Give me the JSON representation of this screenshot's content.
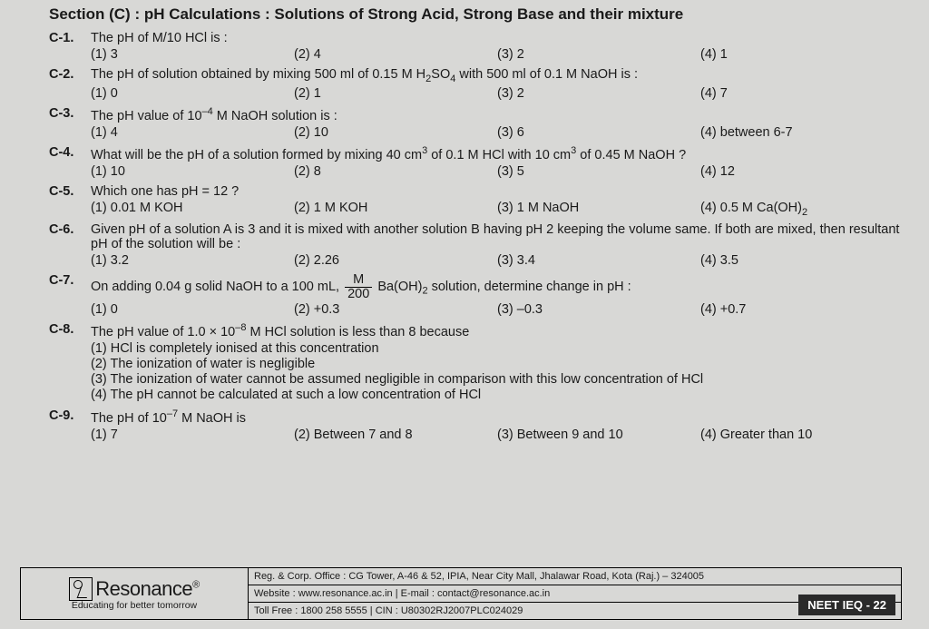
{
  "section_title": "Section (C) : pH Calculations : Solutions of Strong Acid, Strong Base and their mixture",
  "questions": [
    {
      "num": "C-1.",
      "text": "The pH of M/10 HCl is :",
      "options": [
        "(1) 3",
        "(2) 4",
        "(3) 2",
        "(4) 1"
      ],
      "layout": "row"
    },
    {
      "num": "C-2.",
      "text_html": "The pH of solution obtained by mixing 500 ml of 0.15 M H<span class='sub'>2</span>SO<span class='sub'>4</span> with 500 ml of 0.1 M NaOH is :",
      "options": [
        "(1) 0",
        "(2) 1",
        "(3) 2",
        "(4) 7"
      ],
      "layout": "row"
    },
    {
      "num": "C-3.",
      "text_html": "The pH value of 10<span class='sup'>–4</span> M NaOH solution is :",
      "options": [
        "(1) 4",
        "(2) 10",
        "(3) 6",
        "(4) between 6-7"
      ],
      "layout": "row"
    },
    {
      "num": "C-4.",
      "text_html": "What will be the pH of a solution formed by mixing 40 cm<span class='sup'>3</span> of 0.1 M HCl with 10 cm<span class='sup'>3</span> of 0.45 M NaOH ?",
      "options": [
        "(1) 10",
        "(2) 8",
        "(3) 5",
        "(4) 12"
      ],
      "layout": "row"
    },
    {
      "num": "C-5.",
      "text": "Which one has pH = 12 ?",
      "options_html": [
        "(1) 0.01 M KOH",
        "(2) 1 M KOH",
        "(3) 1 M NaOH",
        "(4) 0.5 M Ca(OH)<span class='sub'>2</span>"
      ],
      "layout": "row"
    },
    {
      "num": "C-6.",
      "text": "Given pH of a solution A is 3 and it is mixed with another solution B having pH 2 keeping the volume same. If both are mixed, then resultant pH of the solution will be :",
      "options": [
        "(1) 3.2",
        "(2) 2.26",
        "(3) 3.4",
        "(4) 3.5"
      ],
      "layout": "row"
    },
    {
      "num": "C-7.",
      "text_html": "On adding 0.04 g solid NaOH to a 100 mL, <span class='frac'><span class='n'>M</span><span class='d'>200</span></span> Ba(OH)<span class='sub'>2</span> solution, determine change in pH :",
      "options": [
        "(1) 0",
        "(2) +0.3",
        "(3) –0.3",
        "(4) +0.7"
      ],
      "layout": "row"
    },
    {
      "num": "C-8.",
      "text_html": "The pH value of 1.0 × 10<span class='sup'>–8</span> M HCl solution is less than 8 because",
      "options": [
        "(1) HCl is completely ionised at this concentration",
        "(2) The ionization of water is negligible",
        "(3) The ionization of water cannot be assumed negligible in comparison with this low concentration of HCl",
        "(4) The pH cannot be calculated at such a low concentration of HCl"
      ],
      "layout": "stack"
    },
    {
      "num": "C-9.",
      "text_html": "The pH of 10<span class='sup'>–7</span> M NaOH is",
      "options": [
        "(1) 7",
        "(2) Between 7 and 8",
        "(3) Between 9 and 10",
        "(4) Greater than 10"
      ],
      "layout": "row"
    }
  ],
  "footer": {
    "logo_main": "Resonance",
    "logo_reg": "®",
    "logo_sub": "Educating for better tomorrow",
    "row1": "Reg. & Corp. Office : CG Tower, A-46 & 52, IPIA, Near City Mall, Jhalawar Road, Kota (Raj.) – 324005",
    "row2": "Website : www.resonance.ac.in | E-mail : contact@resonance.ac.in",
    "row3": "Toll Free : 1800 258 5555 | CIN : U80302RJ2007PLC024029",
    "neet": "NEET IEQ - 22"
  }
}
